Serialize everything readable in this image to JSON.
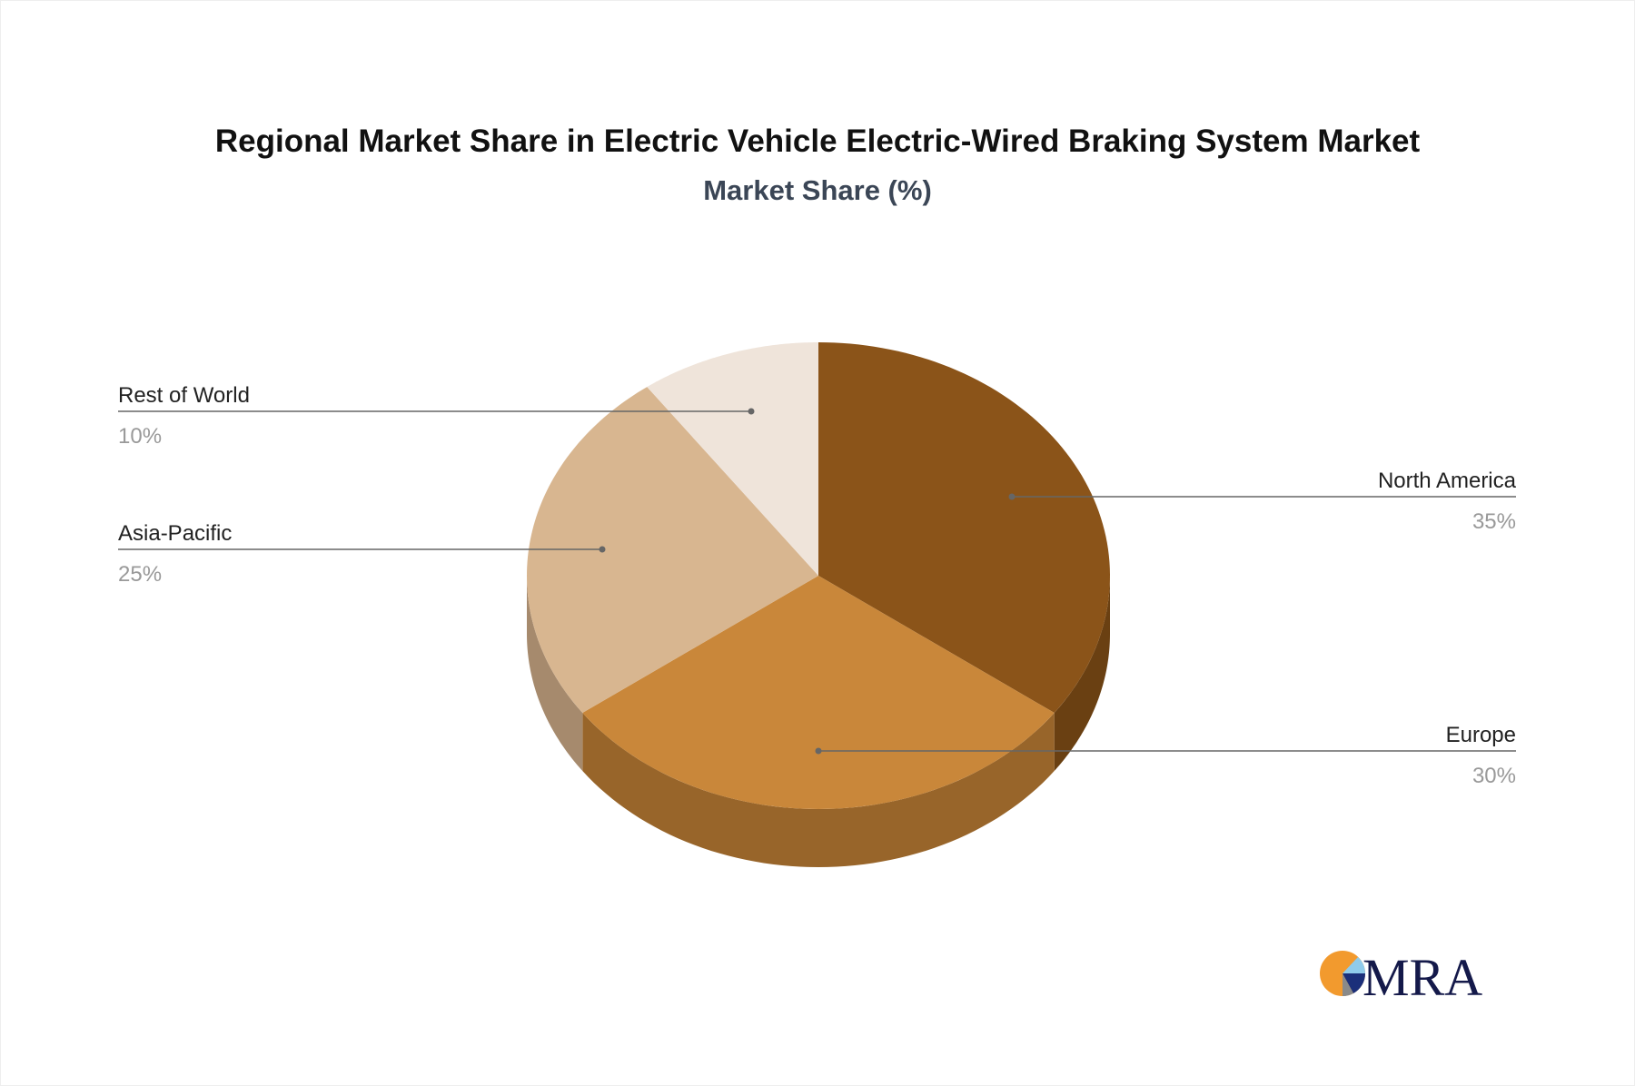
{
  "chart_data": {
    "type": "pie",
    "title": "Regional Market Share in Electric Vehicle Electric-Wired Braking System Market",
    "subtitle": "Market Share (%)",
    "style": "3d",
    "slices": [
      {
        "label": "North America",
        "value": 35,
        "display": "35%",
        "color": "#8B5419",
        "side_color": "#6A4012"
      },
      {
        "label": "Europe",
        "value": 30,
        "display": "30%",
        "color": "#C9873A",
        "side_color": "#98652A"
      },
      {
        "label": "Asia-Pacific",
        "value": 25,
        "display": "25%",
        "color": "#D8B690",
        "side_color": "#A68A6D"
      },
      {
        "label": "Rest of World",
        "value": 10,
        "display": "10%",
        "color": "#EFE4DA",
        "side_color": "#BDB2A8"
      }
    ]
  },
  "logo": {
    "text": "MRA"
  }
}
